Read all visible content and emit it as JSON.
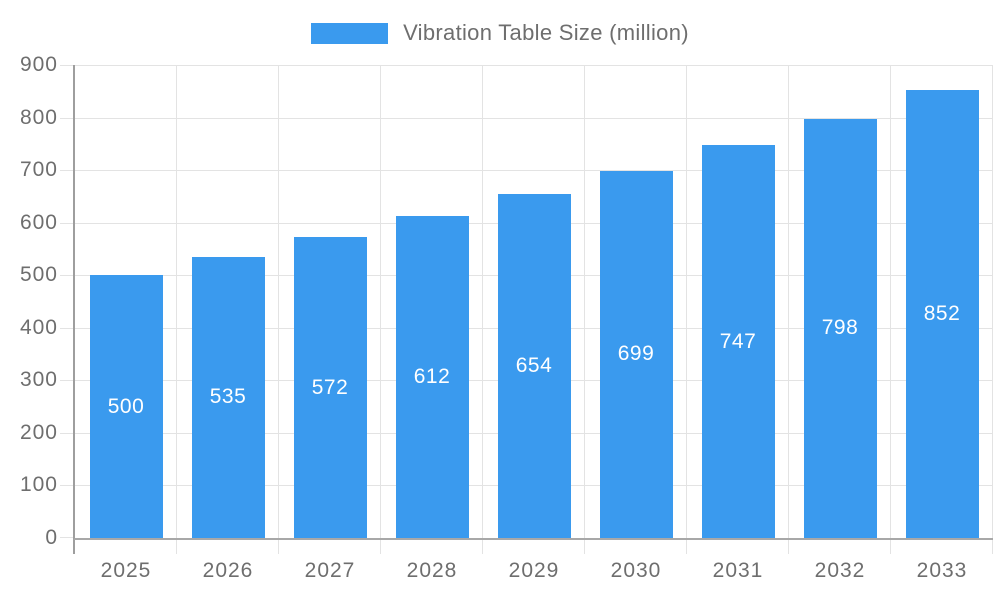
{
  "chart_data": {
    "type": "bar",
    "title": "",
    "legend": "Vibration Table Size (million)",
    "categories": [
      "2025",
      "2026",
      "2027",
      "2028",
      "2029",
      "2030",
      "2031",
      "2032",
      "2033"
    ],
    "values": [
      500,
      535,
      572,
      612,
      654,
      699,
      747,
      798,
      852
    ],
    "xlabel": "",
    "ylabel": "",
    "ylim": [
      0,
      900
    ],
    "y_ticks": [
      0,
      100,
      200,
      300,
      400,
      500,
      600,
      700,
      800,
      900
    ],
    "grid": true,
    "legend_position": "top-center",
    "value_labels": "inside-center",
    "colors": {
      "bar": "#3a9aee",
      "value_label": "#ffffff",
      "axis_line": "#9e9e9e",
      "grid_line": "#e3e3e3",
      "tick_label": "#6e6e6e",
      "legend_text": "#6e6e6e",
      "background": "#ffffff"
    }
  }
}
